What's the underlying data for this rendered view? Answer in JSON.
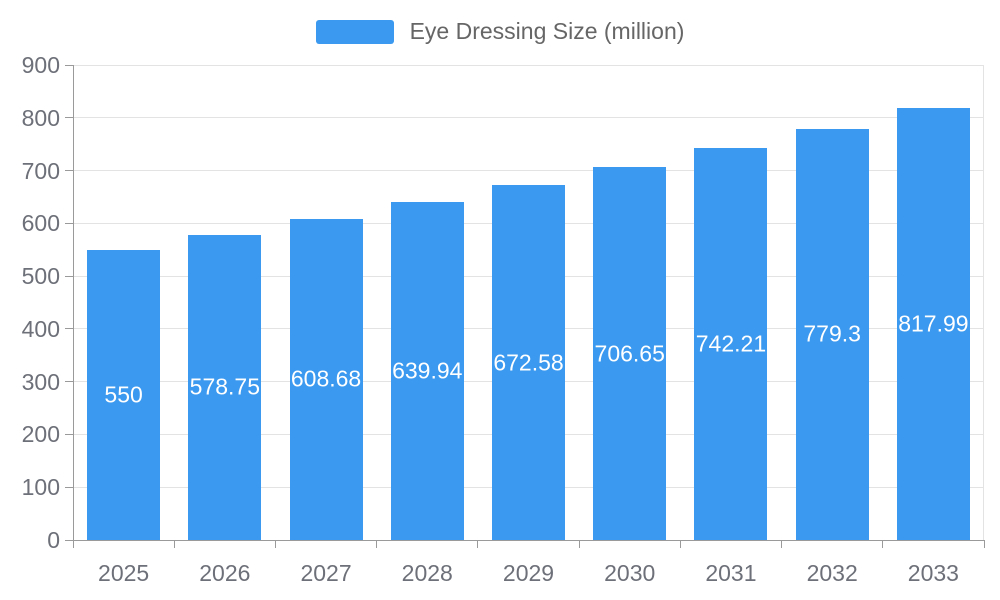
{
  "legend": {
    "label": "Eye Dressing Size (million)",
    "swatch_color": "#3B99EF"
  },
  "colors": {
    "bar": "#3B99EF",
    "grid": "#E3E3E3",
    "axis": "#9A9A9A",
    "axis_label": "#6E7079",
    "legend_text": "#666666",
    "value_label": "#FFFFFF",
    "background": "#FFFFFF"
  },
  "chart_data": {
    "type": "bar",
    "title": "Eye Dressing Size (million)",
    "categories": [
      "2025",
      "2026",
      "2027",
      "2028",
      "2029",
      "2030",
      "2031",
      "2032",
      "2033"
    ],
    "values": [
      550,
      578.75,
      608.68,
      639.94,
      672.58,
      706.65,
      742.21,
      779.3,
      817.99
    ],
    "value_labels": [
      "550",
      "578.75",
      "608.68",
      "639.94",
      "672.58",
      "706.65",
      "742.21",
      "779.3",
      "817.99"
    ],
    "xlabel": "",
    "ylabel": "",
    "ylim": [
      0,
      900
    ],
    "yticks": [
      0,
      100,
      200,
      300,
      400,
      500,
      600,
      700,
      800,
      900
    ],
    "grid": true,
    "legend_position": "top-center",
    "value_label_position": "center-of-bar"
  }
}
